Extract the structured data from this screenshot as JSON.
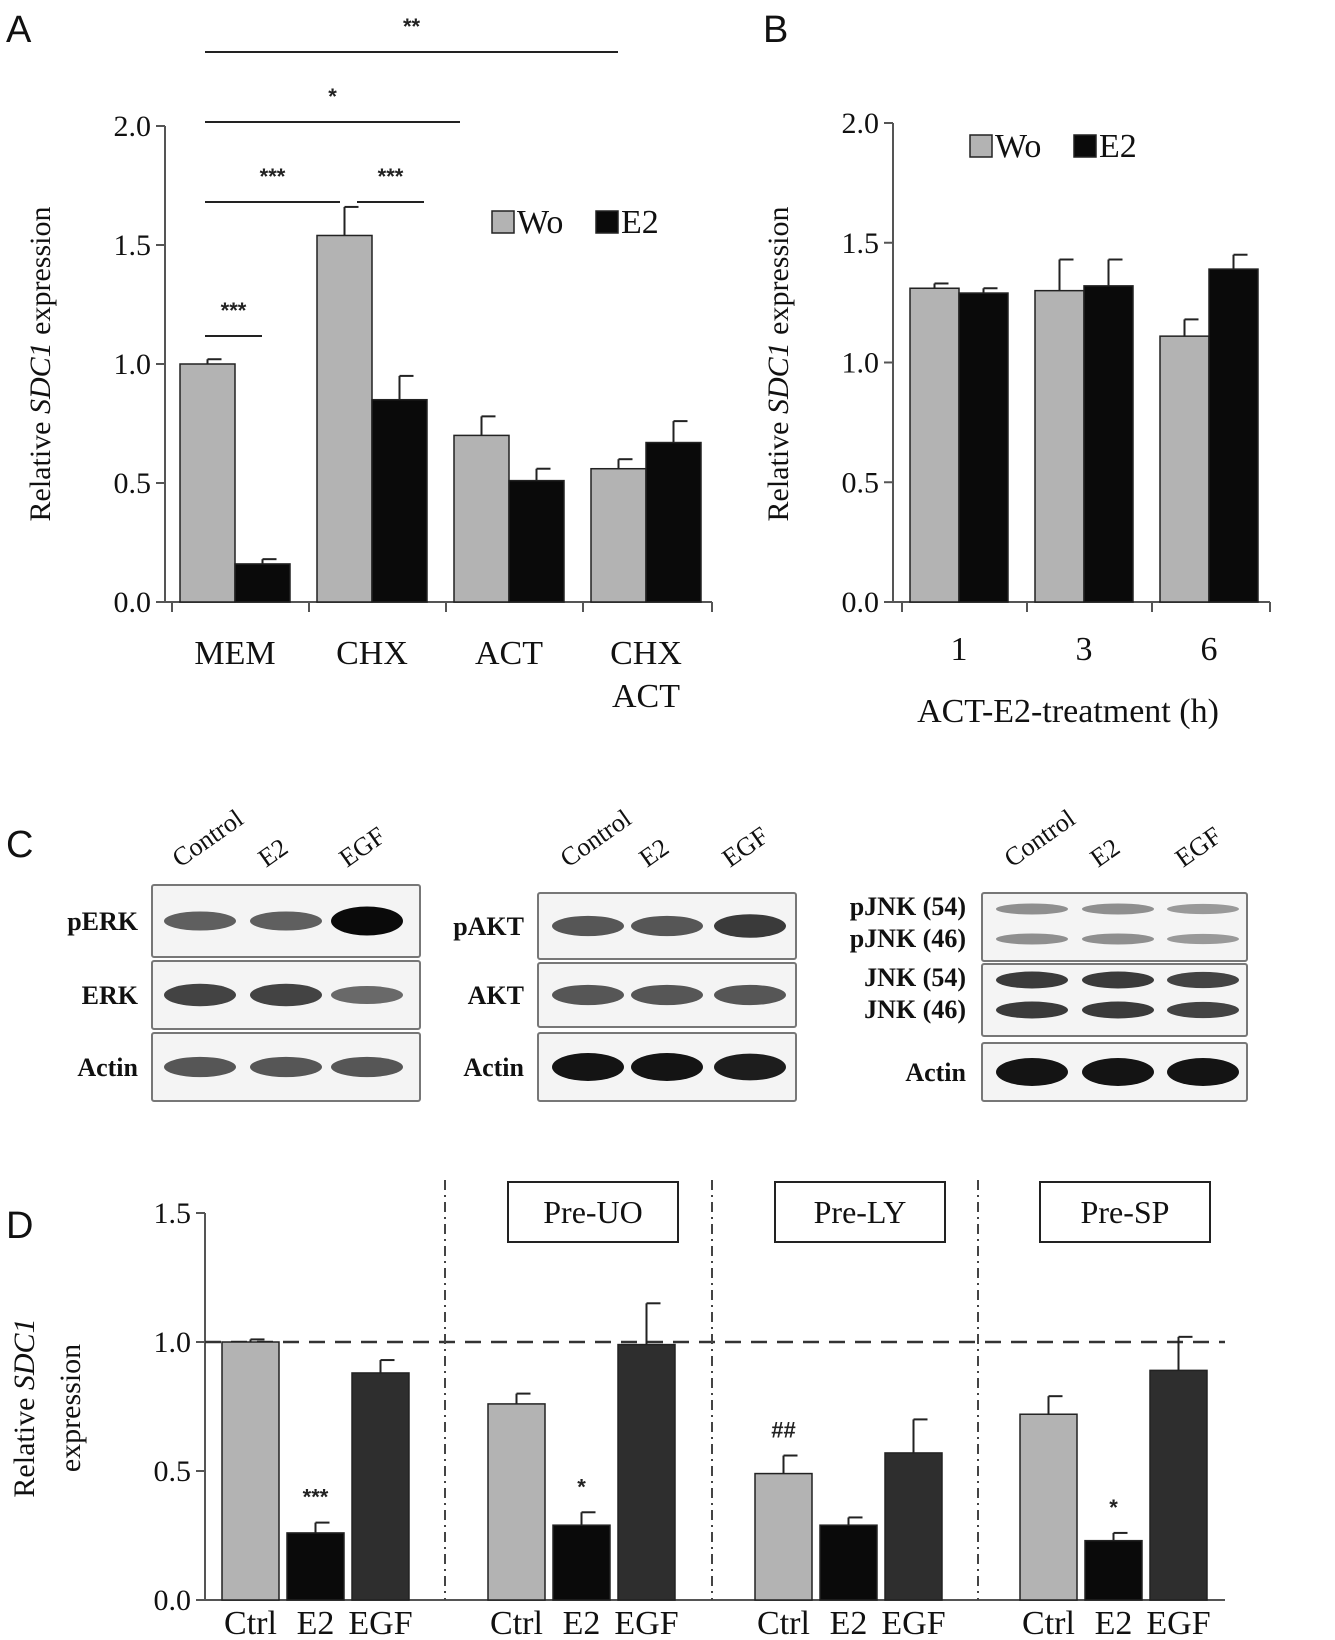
{
  "colors": {
    "wo": "#b3b3b3",
    "e2": "#0a0a0a",
    "egf": "#2e2e2e",
    "axis": "#555555",
    "text": "#111111"
  },
  "panels": {
    "A": {
      "label": "A"
    },
    "B": {
      "label": "B"
    },
    "C": {
      "label": "C"
    },
    "D": {
      "label": "D"
    }
  },
  "chart_data": [
    {
      "panel": "A",
      "type": "bar",
      "ylabel_parts": [
        "Relative ",
        "SDC1",
        " expression"
      ],
      "ylim": [
        0,
        2.0
      ],
      "yticks": [
        "0.0",
        "0.5",
        "1.0",
        "1.5",
        "2.0"
      ],
      "categories": [
        [
          "MEM"
        ],
        [
          "CHX"
        ],
        [
          "ACT"
        ],
        [
          "CHX",
          "ACT"
        ]
      ],
      "legend": [
        "Wo",
        "E2"
      ],
      "legend_position": "top-right",
      "series": [
        {
          "name": "Wo",
          "values": [
            1.0,
            1.54,
            0.7,
            0.56
          ],
          "errors": [
            0.02,
            0.12,
            0.08,
            0.04
          ]
        },
        {
          "name": "E2",
          "values": [
            0.16,
            0.85,
            0.51,
            0.67
          ],
          "errors": [
            0.02,
            0.1,
            0.05,
            0.09
          ]
        }
      ],
      "significance": [
        {
          "label": "***",
          "from": "MEM-Wo",
          "to": "MEM-E2"
        },
        {
          "label": "***",
          "from": "MEM-Wo",
          "to": "CHX-Wo"
        },
        {
          "label": "***",
          "from": "CHX-Wo",
          "to": "CHX-E2"
        },
        {
          "label": "*",
          "from": "MEM-Wo",
          "to": "ACT-Wo"
        },
        {
          "label": "**",
          "from": "MEM-Wo",
          "to": "CHX ACT-Wo"
        }
      ]
    },
    {
      "panel": "B",
      "type": "bar",
      "ylabel_parts": [
        "Relative ",
        "SDC1",
        " expression"
      ],
      "xlabel": "ACT-E2-treatment  (h)",
      "ylim": [
        0,
        2.0
      ],
      "yticks": [
        "0.0",
        "0.5",
        "1.0",
        "1.5",
        "2.0"
      ],
      "categories": [
        "1",
        "3",
        "6"
      ],
      "legend": [
        "Wo",
        "E2"
      ],
      "legend_position": "top",
      "series": [
        {
          "name": "Wo",
          "values": [
            1.31,
            1.3,
            1.11
          ],
          "errors": [
            0.02,
            0.13,
            0.07
          ]
        },
        {
          "name": "E2",
          "values": [
            1.29,
            1.32,
            1.39
          ],
          "errors": [
            0.02,
            0.11,
            0.06
          ]
        }
      ]
    },
    {
      "panel": "D",
      "type": "bar",
      "ylabel_parts": [
        "Relative ",
        "SDC1"
      ],
      "ylabel_line2": "expression",
      "ylim": [
        0,
        1.5
      ],
      "yticks": [
        "0.0",
        "0.5",
        "1.0",
        "1.5"
      ],
      "reference_line": 1.0,
      "groups": [
        {
          "title": "",
          "categories": [
            "Ctrl",
            "E2",
            "EGF"
          ],
          "values": [
            1.0,
            0.26,
            0.88
          ],
          "errors": [
            0.01,
            0.04,
            0.05
          ],
          "marks": [
            "",
            "***",
            ""
          ]
        },
        {
          "title": "Pre-UO",
          "categories": [
            "Ctrl",
            "E2",
            "EGF"
          ],
          "values": [
            0.76,
            0.29,
            0.99
          ],
          "errors": [
            0.04,
            0.05,
            0.16
          ],
          "marks": [
            "",
            "*",
            ""
          ]
        },
        {
          "title": "Pre-LY",
          "categories": [
            "Ctrl",
            "E2",
            "EGF"
          ],
          "values": [
            0.49,
            0.29,
            0.57
          ],
          "errors": [
            0.07,
            0.03,
            0.13
          ],
          "marks": [
            "##",
            "",
            ""
          ]
        },
        {
          "title": "Pre-SP",
          "categories": [
            "Ctrl",
            "E2",
            "EGF"
          ],
          "values": [
            0.72,
            0.23,
            0.89
          ],
          "errors": [
            0.07,
            0.03,
            0.13
          ],
          "marks": [
            "",
            "*",
            ""
          ]
        }
      ]
    }
  ],
  "blots": [
    {
      "lanes": [
        "Control",
        "E2",
        "EGF"
      ],
      "rows": [
        {
          "labels": [
            "pERK"
          ],
          "intensity": [
            0.55,
            0.55,
            1.0
          ]
        },
        {
          "labels": [
            "ERK"
          ],
          "intensity": [
            0.7,
            0.7,
            0.5
          ]
        },
        {
          "labels": [
            "Actin"
          ],
          "intensity": [
            0.6,
            0.6,
            0.6
          ]
        }
      ]
    },
    {
      "lanes": [
        "Control",
        "E2",
        "EGF"
      ],
      "rows": [
        {
          "labels": [
            "pAKT"
          ],
          "intensity": [
            0.6,
            0.6,
            0.75
          ]
        },
        {
          "labels": [
            "AKT"
          ],
          "intensity": [
            0.6,
            0.6,
            0.6
          ]
        },
        {
          "labels": [
            "Actin"
          ],
          "intensity": [
            0.95,
            0.95,
            0.9
          ]
        }
      ]
    },
    {
      "lanes": [
        "Control",
        "E2",
        "EGF"
      ],
      "rows": [
        {
          "labels": [
            "pJNK (54)",
            "pJNK (46)"
          ],
          "intensity": [
            0.3,
            0.3,
            0.25
          ]
        },
        {
          "labels": [
            "JNK (54)",
            "JNK (46)"
          ],
          "intensity": [
            0.75,
            0.75,
            0.7
          ]
        },
        {
          "labels": [
            "Actin"
          ],
          "intensity": [
            0.95,
            0.95,
            0.95
          ]
        }
      ]
    }
  ]
}
